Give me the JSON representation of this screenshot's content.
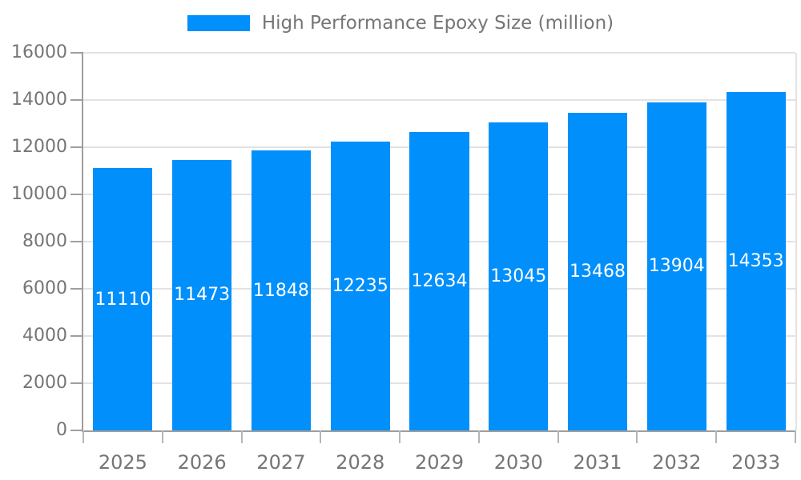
{
  "legend": {
    "position": "top-center",
    "marker_shape": "rectangle"
  },
  "chart_data": {
    "type": "bar",
    "title": "High Performance Epoxy Size (million)",
    "categories": [
      "2025",
      "2026",
      "2027",
      "2028",
      "2029",
      "2030",
      "2031",
      "2032",
      "2033"
    ],
    "series": [
      {
        "name": "High Performance Epoxy Size (million)",
        "color": "#008FFB",
        "values": [
          11110,
          11473,
          11848,
          12235,
          12634,
          13045,
          13468,
          13904,
          14353
        ]
      }
    ],
    "xlabel": "",
    "ylabel": "",
    "ylim": [
      0,
      16000
    ],
    "ytick_step": 2000,
    "yticks": [
      0,
      2000,
      4000,
      6000,
      8000,
      10000,
      12000,
      14000,
      16000
    ],
    "grid": true,
    "legend_position": "top",
    "value_labels": {
      "visible": true,
      "position": "middle-of-bar",
      "color": "#ffffff"
    }
  },
  "colors": {
    "bar": "#008FFB",
    "axis_label": "#757575",
    "grid_line": "#e3e3e3",
    "axis_line": "#9e9e9e",
    "value_label": "#ffffff",
    "background": "#ffffff"
  }
}
